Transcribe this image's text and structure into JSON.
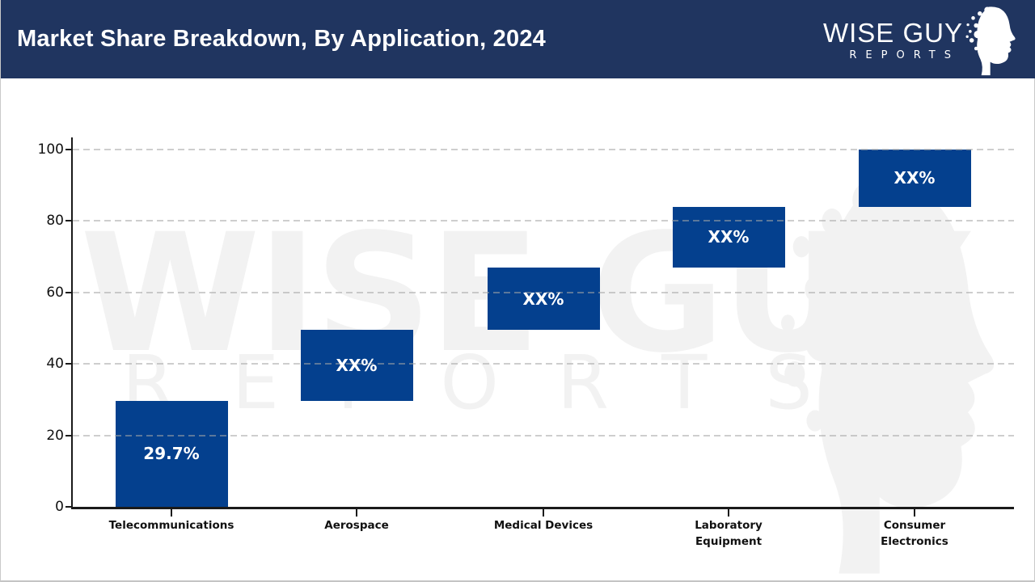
{
  "colors": {
    "header_bg": "#203560",
    "bar_blue": "#04408E",
    "gridline_gray": "#cccccc",
    "axis_black": "#1a1a1a",
    "watermark_gray": "#f2f2f2",
    "label_white": "#ffffff"
  },
  "header": {
    "title": "Market Share Breakdown, By Application, 2024",
    "logo_line1": "WISE GUY",
    "logo_line2": "REPORTS"
  },
  "watermark": {
    "line1": "WISE GUY",
    "line2": "REPORTS"
  },
  "chart_data": {
    "type": "bar",
    "subtype": "waterfall",
    "title": "Market Share Breakdown, By Application, 2024",
    "xlabel": "",
    "ylabel": "",
    "ylim": [
      0,
      100
    ],
    "yticks": [
      0,
      20,
      40,
      60,
      80,
      100
    ],
    "grid": "horizontal-dashed",
    "legend": "none",
    "bar_color": "#04408E",
    "categories": [
      "Telecommunications",
      "Aerospace",
      "Medical Devices",
      "Laboratory Equipment",
      "Consumer Electronics"
    ],
    "category_label_lines": [
      [
        "Telecommunications"
      ],
      [
        "Aerospace"
      ],
      [
        "Medical Devices"
      ],
      [
        "Laboratory",
        "Equipment"
      ],
      [
        "Consumer",
        "Electronics"
      ]
    ],
    "segments": [
      {
        "category": "Telecommunications",
        "start": 0,
        "end": 29.7,
        "label": "29.7%"
      },
      {
        "category": "Aerospace",
        "start": 29.7,
        "end": 49.5,
        "label": "XX%"
      },
      {
        "category": "Medical Devices",
        "start": 49.5,
        "end": 67.0,
        "label": "XX%"
      },
      {
        "category": "Laboratory Equipment",
        "start": 67.0,
        "end": 84.0,
        "label": "XX%"
      },
      {
        "category": "Consumer Electronics",
        "start": 84.0,
        "end": 100.0,
        "label": "XX%"
      }
    ]
  }
}
